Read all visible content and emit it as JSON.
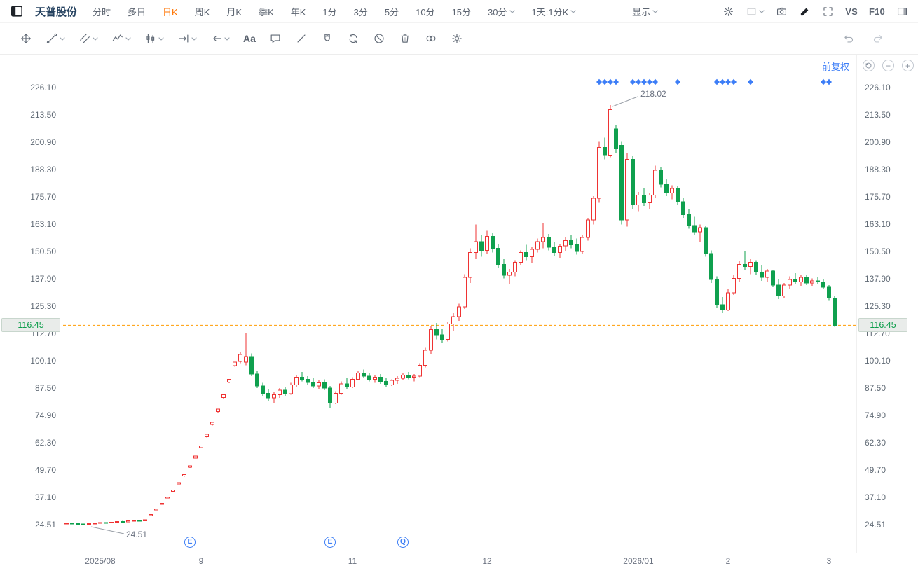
{
  "toolbar_top": {
    "stock_name": "天普股份",
    "items": [
      {
        "label": "分时"
      },
      {
        "label": "多日"
      },
      {
        "label": "日K",
        "active": true
      },
      {
        "label": "周K"
      },
      {
        "label": "月K"
      },
      {
        "label": "季K"
      },
      {
        "label": "年K"
      },
      {
        "label": "1分"
      },
      {
        "label": "3分"
      },
      {
        "label": "5分"
      },
      {
        "label": "10分"
      },
      {
        "label": "15分"
      },
      {
        "label": "30分",
        "caret": true
      },
      {
        "label": "1天:1分K",
        "caret": true
      },
      {
        "label": "显示",
        "caret": true,
        "gap_before": true
      }
    ],
    "right_items": [
      {
        "icon": "gear-icon"
      },
      {
        "icon": "layout-icon",
        "caret": true
      },
      {
        "icon": "camera-icon"
      },
      {
        "icon": "pencil-icon",
        "active": true
      },
      {
        "icon": "fullscreen-icon"
      },
      {
        "text": "VS"
      },
      {
        "text": "F10"
      },
      {
        "icon": "panel-right-icon"
      }
    ]
  },
  "toolbar_draw": {
    "tools": [
      {
        "icon": "move-icon"
      },
      {
        "icon": "trendline-icon",
        "caret": true
      },
      {
        "icon": "channel-icon",
        "caret": true
      },
      {
        "icon": "wave-icon",
        "caret": true
      },
      {
        "icon": "pattern-icon",
        "caret": true
      },
      {
        "icon": "measure-icon",
        "caret": true
      },
      {
        "icon": "arrow-left-icon",
        "caret": true
      },
      {
        "icon": "text-icon",
        "label": "Aa"
      },
      {
        "icon": "comment-icon"
      },
      {
        "icon": "slash-icon"
      },
      {
        "icon": "magnet-icon"
      },
      {
        "icon": "sync-icon"
      },
      {
        "icon": "hide-icon"
      },
      {
        "icon": "trash-icon"
      },
      {
        "icon": "compare-icon"
      },
      {
        "icon": "settings-icon"
      }
    ],
    "history": [
      {
        "icon": "undo-icon"
      },
      {
        "icon": "redo-icon"
      }
    ]
  },
  "chart_controls": {
    "zoom_out": "−",
    "zoom_in": "+"
  },
  "chart_data": {
    "type": "candlestick",
    "title": "天普股份 日K",
    "adjust": "前复权",
    "current_price": "116.45",
    "current_price_value": 116.45,
    "peak_label": "218.02",
    "low_label": "24.51",
    "up_color": "#ef3333",
    "down_color": "#0fa04e",
    "price_line_color": "#ff9c00",
    "marker_color": "#3d7ef7",
    "ylim": [
      20,
      230
    ],
    "y_ticks": [
      "226.10",
      "213.50",
      "200.90",
      "188.30",
      "175.70",
      "163.10",
      "150.50",
      "137.90",
      "125.30",
      "112.70",
      "100.10",
      "87.50",
      "74.90",
      "62.30",
      "49.70",
      "37.10",
      "24.51"
    ],
    "x_labels": [
      {
        "label": "2025/08",
        "day": 6
      },
      {
        "label": "9",
        "day": 24
      },
      {
        "label": "11",
        "day": 51
      },
      {
        "label": "12",
        "day": 75
      },
      {
        "label": "2026/01",
        "day": 102
      },
      {
        "label": "2",
        "day": 118
      },
      {
        "label": "3",
        "day": 136
      }
    ],
    "event_markers": [
      {
        "label": "E",
        "day": 22
      },
      {
        "label": "E",
        "day": 47
      },
      {
        "label": "Q",
        "day": 60
      }
    ],
    "diamond_days": [
      95,
      96,
      97,
      98,
      101,
      102,
      103,
      104,
      105,
      109,
      116,
      117,
      118,
      119,
      122,
      135,
      136
    ],
    "ohlc": [
      [
        25.1,
        25.4,
        24.8,
        25.2
      ],
      [
        25.2,
        25.35,
        24.9,
        25.0
      ],
      [
        25.0,
        25.2,
        24.6,
        24.75
      ],
      [
        24.75,
        24.9,
        24.51,
        24.6
      ],
      [
        24.6,
        25.1,
        24.55,
        25.0
      ],
      [
        25.0,
        25.3,
        24.85,
        25.2
      ],
      [
        25.2,
        25.6,
        25.05,
        25.45
      ],
      [
        25.45,
        25.7,
        25.2,
        25.3
      ],
      [
        25.3,
        25.8,
        25.25,
        25.7
      ],
      [
        25.7,
        26.1,
        25.5,
        25.95
      ],
      [
        25.95,
        26.2,
        25.6,
        25.75
      ],
      [
        25.75,
        26.3,
        25.7,
        26.2
      ],
      [
        26.2,
        26.6,
        26.0,
        26.45
      ],
      [
        26.45,
        26.7,
        26.1,
        26.25
      ],
      [
        26.25,
        26.9,
        26.2,
        26.8
      ],
      [
        28.76,
        29.2,
        28.62,
        29.2
      ],
      [
        31.22,
        31.7,
        31.06,
        31.7
      ],
      [
        33.88,
        34.4,
        33.71,
        34.4
      ],
      [
        36.74,
        37.3,
        36.56,
        37.3
      ],
      [
        39.89,
        40.5,
        39.69,
        40.5
      ],
      [
        43.24,
        43.9,
        43.02,
        43.9
      ],
      [
        46.89,
        47.6,
        46.66,
        47.6
      ],
      [
        50.92,
        51.7,
        50.67,
        51.7
      ],
      [
        55.26,
        56.1,
        54.98,
        56.1
      ],
      [
        59.99,
        60.9,
        59.69,
        60.9
      ],
      [
        65.11,
        66.1,
        64.78,
        66.1
      ],
      [
        70.62,
        71.7,
        70.27,
        71.7
      ],
      [
        76.63,
        77.8,
        76.25,
        77.8
      ],
      [
        83.13,
        84.4,
        82.71,
        84.4
      ],
      [
        90.23,
        91.6,
        89.78,
        91.6
      ],
      [
        97.91,
        99.4,
        97.42,
        99.4
      ],
      [
        99.8,
        104.0,
        99.0,
        103.0
      ],
      [
        99.5,
        112.7,
        98.0,
        102.0
      ],
      [
        102.0,
        103.5,
        93.0,
        94.0
      ],
      [
        94.0,
        95.5,
        87.5,
        88.5
      ],
      [
        88.5,
        90.0,
        84.0,
        85.0
      ],
      [
        85.0,
        87.0,
        81.5,
        83.0
      ],
      [
        83.0,
        85.5,
        80.5,
        84.5
      ],
      [
        84.5,
        87.5,
        83.0,
        86.5
      ],
      [
        86.5,
        88.0,
        84.0,
        85.0
      ],
      [
        85.0,
        90.0,
        84.5,
        89.0
      ],
      [
        89.0,
        93.5,
        88.0,
        92.5
      ],
      [
        92.5,
        95.0,
        90.5,
        91.5
      ],
      [
        91.5,
        93.0,
        89.0,
        90.0
      ],
      [
        90.0,
        92.0,
        87.5,
        88.5
      ],
      [
        88.5,
        91.0,
        87.0,
        90.0
      ],
      [
        90.0,
        91.5,
        86.5,
        87.5
      ],
      [
        87.5,
        88.5,
        78.5,
        80.5
      ],
      [
        80.5,
        86.0,
        80.0,
        85.0
      ],
      [
        85.0,
        90.5,
        84.5,
        89.5
      ],
      [
        89.5,
        92.0,
        87.0,
        88.0
      ],
      [
        88.0,
        92.5,
        87.5,
        91.5
      ],
      [
        91.5,
        95.5,
        91.0,
        94.5
      ],
      [
        94.5,
        96.0,
        92.0,
        93.0
      ],
      [
        93.0,
        94.5,
        90.5,
        91.5
      ],
      [
        91.5,
        93.5,
        90.0,
        92.5
      ],
      [
        92.5,
        94.0,
        89.5,
        90.5
      ],
      [
        90.5,
        92.0,
        88.0,
        89.0
      ],
      [
        89.0,
        91.5,
        88.5,
        91.0
      ],
      [
        91.0,
        93.0,
        89.5,
        92.0
      ],
      [
        92.0,
        94.5,
        91.0,
        93.5
      ],
      [
        93.5,
        95.0,
        91.5,
        92.5
      ],
      [
        92.5,
        94.0,
        90.5,
        93.0
      ],
      [
        93.0,
        99.0,
        92.5,
        98.0
      ],
      [
        98.0,
        106.0,
        97.0,
        105.0
      ],
      [
        105.0,
        116.0,
        103.0,
        114.5
      ],
      [
        114.5,
        117.5,
        110.0,
        112.0
      ],
      [
        112.0,
        115.0,
        108.5,
        110.0
      ],
      [
        110.0,
        118.0,
        109.0,
        117.0
      ],
      [
        117.0,
        122.0,
        114.0,
        120.5
      ],
      [
        120.5,
        126.5,
        118.5,
        125.0
      ],
      [
        125.0,
        140.0,
        124.0,
        138.5
      ],
      [
        138.5,
        152.0,
        136.0,
        150.0
      ],
      [
        150.0,
        163.0,
        147.0,
        155.0
      ],
      [
        155.0,
        158.0,
        148.0,
        151.0
      ],
      [
        151.0,
        160.0,
        149.5,
        157.5
      ],
      [
        157.5,
        159.0,
        150.0,
        152.0
      ],
      [
        152.0,
        154.0,
        143.0,
        144.5
      ],
      [
        144.5,
        147.0,
        138.0,
        139.5
      ],
      [
        139.5,
        142.5,
        135.5,
        141.0
      ],
      [
        141.0,
        146.5,
        139.0,
        145.5
      ],
      [
        145.5,
        151.0,
        144.0,
        150.0
      ],
      [
        150.0,
        153.5,
        146.5,
        148.0
      ],
      [
        148.0,
        152.5,
        145.0,
        151.5
      ],
      [
        151.5,
        156.5,
        150.0,
        155.0
      ],
      [
        155.0,
        163.5,
        152.0,
        157.0
      ],
      [
        157.0,
        158.5,
        151.0,
        152.5
      ],
      [
        152.5,
        155.0,
        148.5,
        150.0
      ],
      [
        150.0,
        154.0,
        147.5,
        153.0
      ],
      [
        153.0,
        157.0,
        150.5,
        155.5
      ],
      [
        155.5,
        158.0,
        152.0,
        153.5
      ],
      [
        153.5,
        156.5,
        149.0,
        150.5
      ],
      [
        150.5,
        158.0,
        149.5,
        157.0
      ],
      [
        157.0,
        166.0,
        155.5,
        165.0
      ],
      [
        165.0,
        176.0,
        163.0,
        175.0
      ],
      [
        175.0,
        201.0,
        173.0,
        198.5
      ],
      [
        198.5,
        203.0,
        193.0,
        195.0
      ],
      [
        195.0,
        218.02,
        194.0,
        216.0
      ],
      [
        207.0,
        209.0,
        196.0,
        198.0
      ],
      [
        199.5,
        201.0,
        163.0,
        165.0
      ],
      [
        165.0,
        196.0,
        162.0,
        193.0
      ],
      [
        193.0,
        194.5,
        170.0,
        172.0
      ],
      [
        172.0,
        178.0,
        169.0,
        176.5
      ],
      [
        176.5,
        179.5,
        171.5,
        173.0
      ],
      [
        173.0,
        177.5,
        170.0,
        176.5
      ],
      [
        176.5,
        190.0,
        175.0,
        188.0
      ],
      [
        188.0,
        189.5,
        180.0,
        181.5
      ],
      [
        181.5,
        184.0,
        176.0,
        177.5
      ],
      [
        177.5,
        181.0,
        174.5,
        179.5
      ],
      [
        179.5,
        180.5,
        172.0,
        173.5
      ],
      [
        173.5,
        175.0,
        166.0,
        167.5
      ],
      [
        167.5,
        170.0,
        161.0,
        162.5
      ],
      [
        162.5,
        166.5,
        158.0,
        159.5
      ],
      [
        159.5,
        163.0,
        155.0,
        161.5
      ],
      [
        161.5,
        162.5,
        148.0,
        149.5
      ],
      [
        149.5,
        151.0,
        136.0,
        137.5
      ],
      [
        137.5,
        139.0,
        124.5,
        126.0
      ],
      [
        126.0,
        129.5,
        122.0,
        123.5
      ],
      [
        123.5,
        133.0,
        123.0,
        131.5
      ],
      [
        131.5,
        139.5,
        130.5,
        138.0
      ],
      [
        138.0,
        146.0,
        136.5,
        144.5
      ],
      [
        144.5,
        150.5,
        142.0,
        143.5
      ],
      [
        143.5,
        147.0,
        140.0,
        145.5
      ],
      [
        145.5,
        146.5,
        139.5,
        141.0
      ],
      [
        141.0,
        144.0,
        137.0,
        138.5
      ],
      [
        138.5,
        142.5,
        136.5,
        141.5
      ],
      [
        141.5,
        142.0,
        134.0,
        135.0
      ],
      [
        135.0,
        137.5,
        128.5,
        130.0
      ],
      [
        130.0,
        136.0,
        129.0,
        135.0
      ],
      [
        135.0,
        139.0,
        133.0,
        137.5
      ],
      [
        137.5,
        140.5,
        135.5,
        136.5
      ],
      [
        136.5,
        139.5,
        134.5,
        138.5
      ],
      [
        138.5,
        139.5,
        135.0,
        136.0
      ],
      [
        136.0,
        138.0,
        134.5,
        137.0
      ],
      [
        137.0,
        138.5,
        135.5,
        136.5
      ],
      [
        136.5,
        137.5,
        133.0,
        134.0
      ],
      [
        134.0,
        135.0,
        128.0,
        129.0
      ],
      [
        129.0,
        130.0,
        115.8,
        116.45
      ]
    ]
  }
}
